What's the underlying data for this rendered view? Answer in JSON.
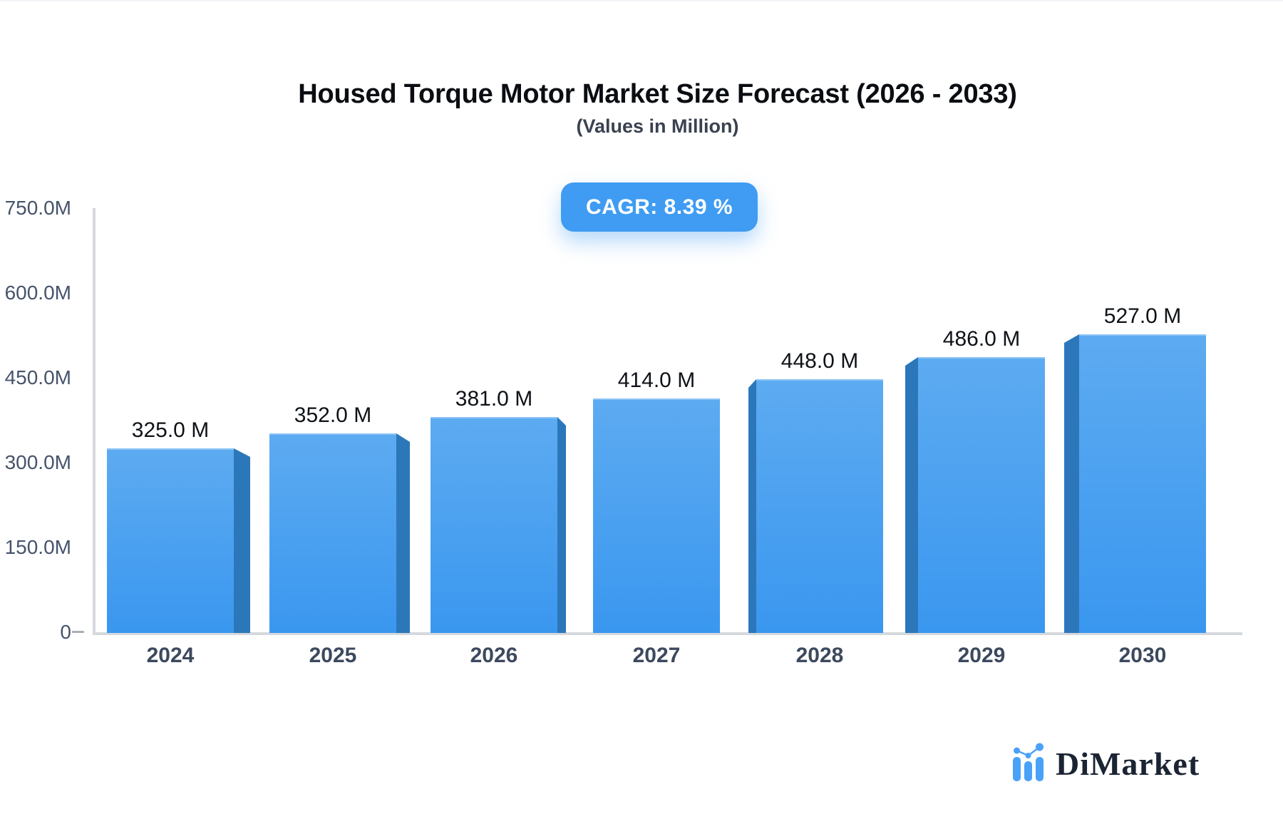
{
  "header": {
    "title": "Housed Torque Motor Market Size Forecast (2026 - 2033)",
    "subtitle": "(Values in Million)",
    "cagr_label": "CAGR: 8.39 %"
  },
  "brand": {
    "name": "DiMarket"
  },
  "colors": {
    "bar_face_top": "#5dabf1",
    "bar_face_bottom": "#3a97ef",
    "bar_side": "#2c77ba",
    "badge_bg": "#3f9cf2",
    "axis_line": "#d5d8dd",
    "brand_blue": "#4aa1f8",
    "brand_text": "#1b2433"
  },
  "chart_data": {
    "type": "bar",
    "style": "3d-extruded-bars",
    "title": "Housed Torque Motor Market Size Forecast (2026 - 2033)",
    "subtitle": "(Values in Million)",
    "unit": "Million",
    "cagr_pct": 8.39,
    "categories": [
      "2024",
      "2025",
      "2026",
      "2027",
      "2028",
      "2029",
      "2030"
    ],
    "values": [
      325.0,
      352.0,
      381.0,
      414.0,
      448.0,
      486.0,
      527.0
    ],
    "value_labels": [
      "325.0 M",
      "352.0 M",
      "381.0 M",
      "414.0 M",
      "448.0 M",
      "486.0 M",
      "527.0 M"
    ],
    "ylim": [
      0,
      750
    ],
    "yticks": {
      "values": [
        0,
        150,
        300,
        450,
        600,
        750
      ],
      "labels": [
        "0",
        "150.0M",
        "300.0M",
        "450.0M",
        "600.0M",
        "750.0M"
      ]
    },
    "grid": false,
    "legend": false
  }
}
